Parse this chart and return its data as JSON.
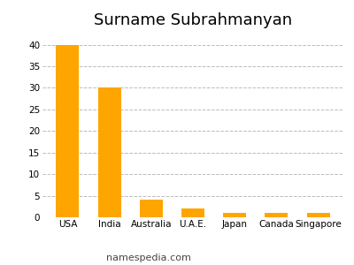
{
  "title": "Surname Subrahmanyan",
  "categories": [
    "USA",
    "India",
    "Australia",
    "U.A.E.",
    "Japan",
    "Canada",
    "Singapore"
  ],
  "values": [
    40,
    30,
    4,
    2,
    1,
    1,
    1
  ],
  "bar_color": "#FFA500",
  "background_color": "#ffffff",
  "ylim": [
    0,
    43
  ],
  "yticks": [
    0,
    5,
    10,
    15,
    20,
    25,
    30,
    35,
    40
  ],
  "grid_color": "#bbbbbb",
  "title_fontsize": 13,
  "tick_fontsize": 7.5,
  "footer_text": "namespedia.com",
  "footer_fontsize": 8,
  "bar_width": 0.55
}
